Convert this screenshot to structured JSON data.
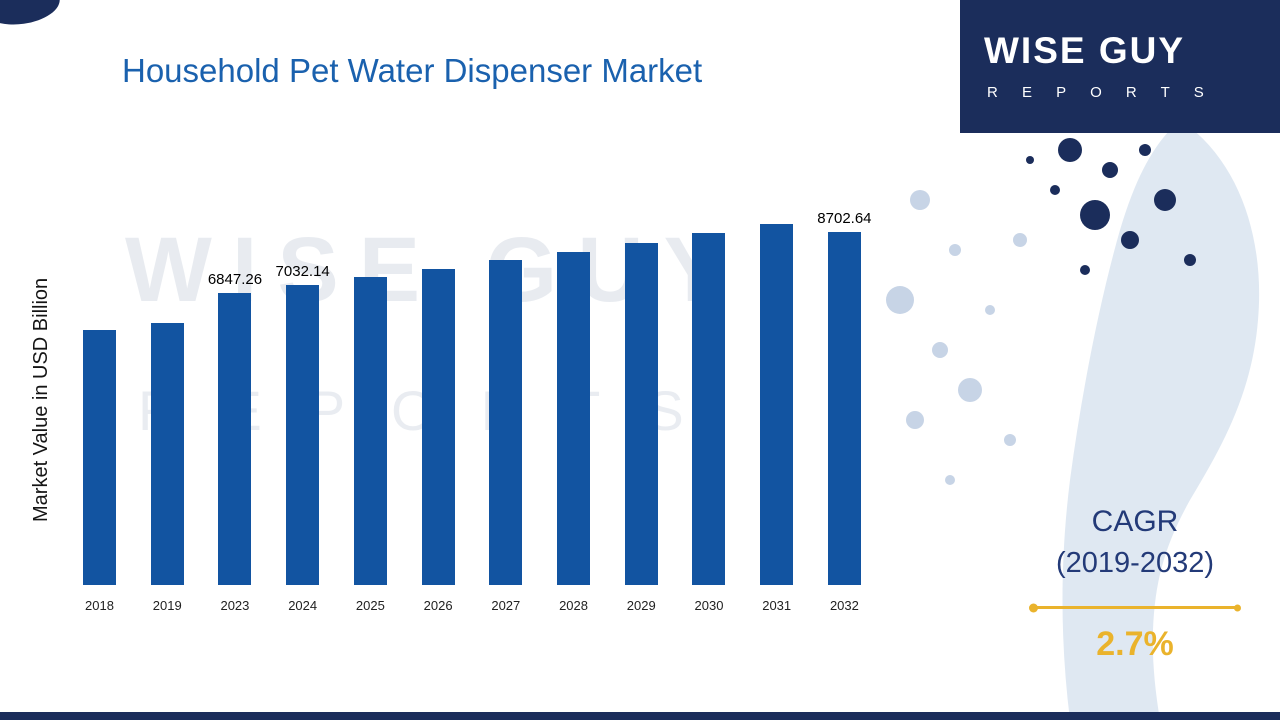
{
  "page": {
    "title": "Household Pet Water Dispenser Market"
  },
  "branding": {
    "logo": {
      "line1": "WISE GUY",
      "line2": "R E P O R T S"
    },
    "watermark": {
      "line1": "WISE GUY",
      "line2": "REPORTS"
    }
  },
  "cagr": {
    "label": "CAGR",
    "range": "(2019-2032)",
    "value": "2.7%"
  },
  "chart_data": {
    "type": "bar",
    "title": "Household Pet Water Dispenser Market",
    "ylabel": "Market Value in USD Billion",
    "xlabel": "",
    "categories": [
      "2018",
      "2019",
      "2023",
      "2024",
      "2025",
      "2026",
      "2027",
      "2028",
      "2029",
      "2030",
      "2031",
      "2032"
    ],
    "values": [
      5993,
      6155,
      6847.26,
      7032.14,
      7222,
      7417,
      7617,
      7823,
      8034,
      8251,
      8474,
      8702.64
    ],
    "data_labels": {
      "2023": "6847.26",
      "2024": "7032.14",
      "2032": "8702.64"
    },
    "ylim": [
      0,
      8800
    ],
    "grid": false,
    "legend": "none",
    "bar_color": "#1254a1"
  },
  "colors": {
    "title_blue": "#1a61ae",
    "bar_blue": "#1254a1",
    "navy": "#1b2d5b",
    "cagr_navy": "#233a78",
    "highlight_yellow": "#eab32c",
    "watermark_gray": "#b9c3d2"
  }
}
